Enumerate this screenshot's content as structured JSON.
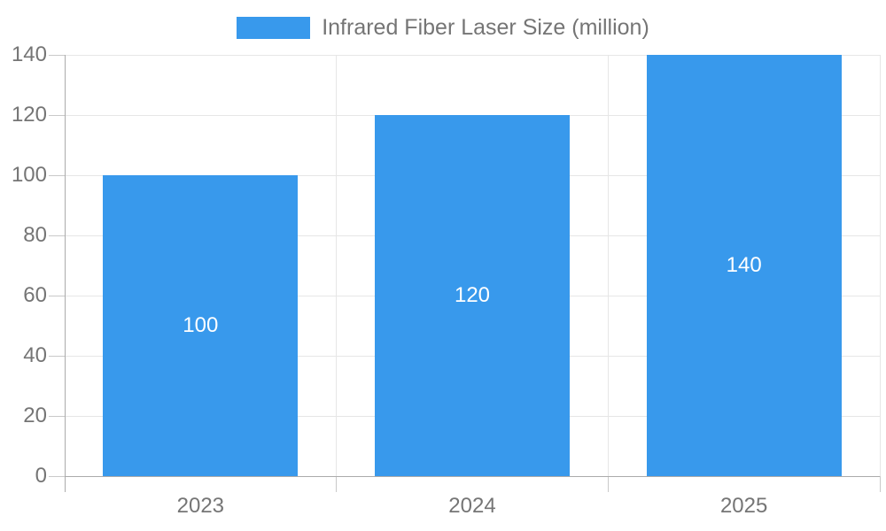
{
  "legend": {
    "label": "Infrared Fiber Laser Size (million)"
  },
  "colors": {
    "bar": "#3899ec",
    "grid": "#e6e6e6",
    "tick": "#c9c9c9",
    "axis": "#ababab",
    "tick_text": "#757575",
    "data_label": "#ffffff",
    "background": "#ffffff"
  },
  "chart_data": {
    "type": "bar",
    "title": "",
    "xlabel": "",
    "ylabel": "",
    "categories": [
      "2023",
      "2024",
      "2025"
    ],
    "series": [
      {
        "name": "Infrared Fiber Laser Size (million)",
        "values": [
          100,
          120,
          140
        ]
      }
    ],
    "yticks": [
      0,
      20,
      40,
      60,
      80,
      100,
      120,
      140
    ],
    "ylim": [
      0,
      140
    ],
    "grid": true,
    "legend_position": "top-center",
    "data_labels_inside_bars": true
  }
}
